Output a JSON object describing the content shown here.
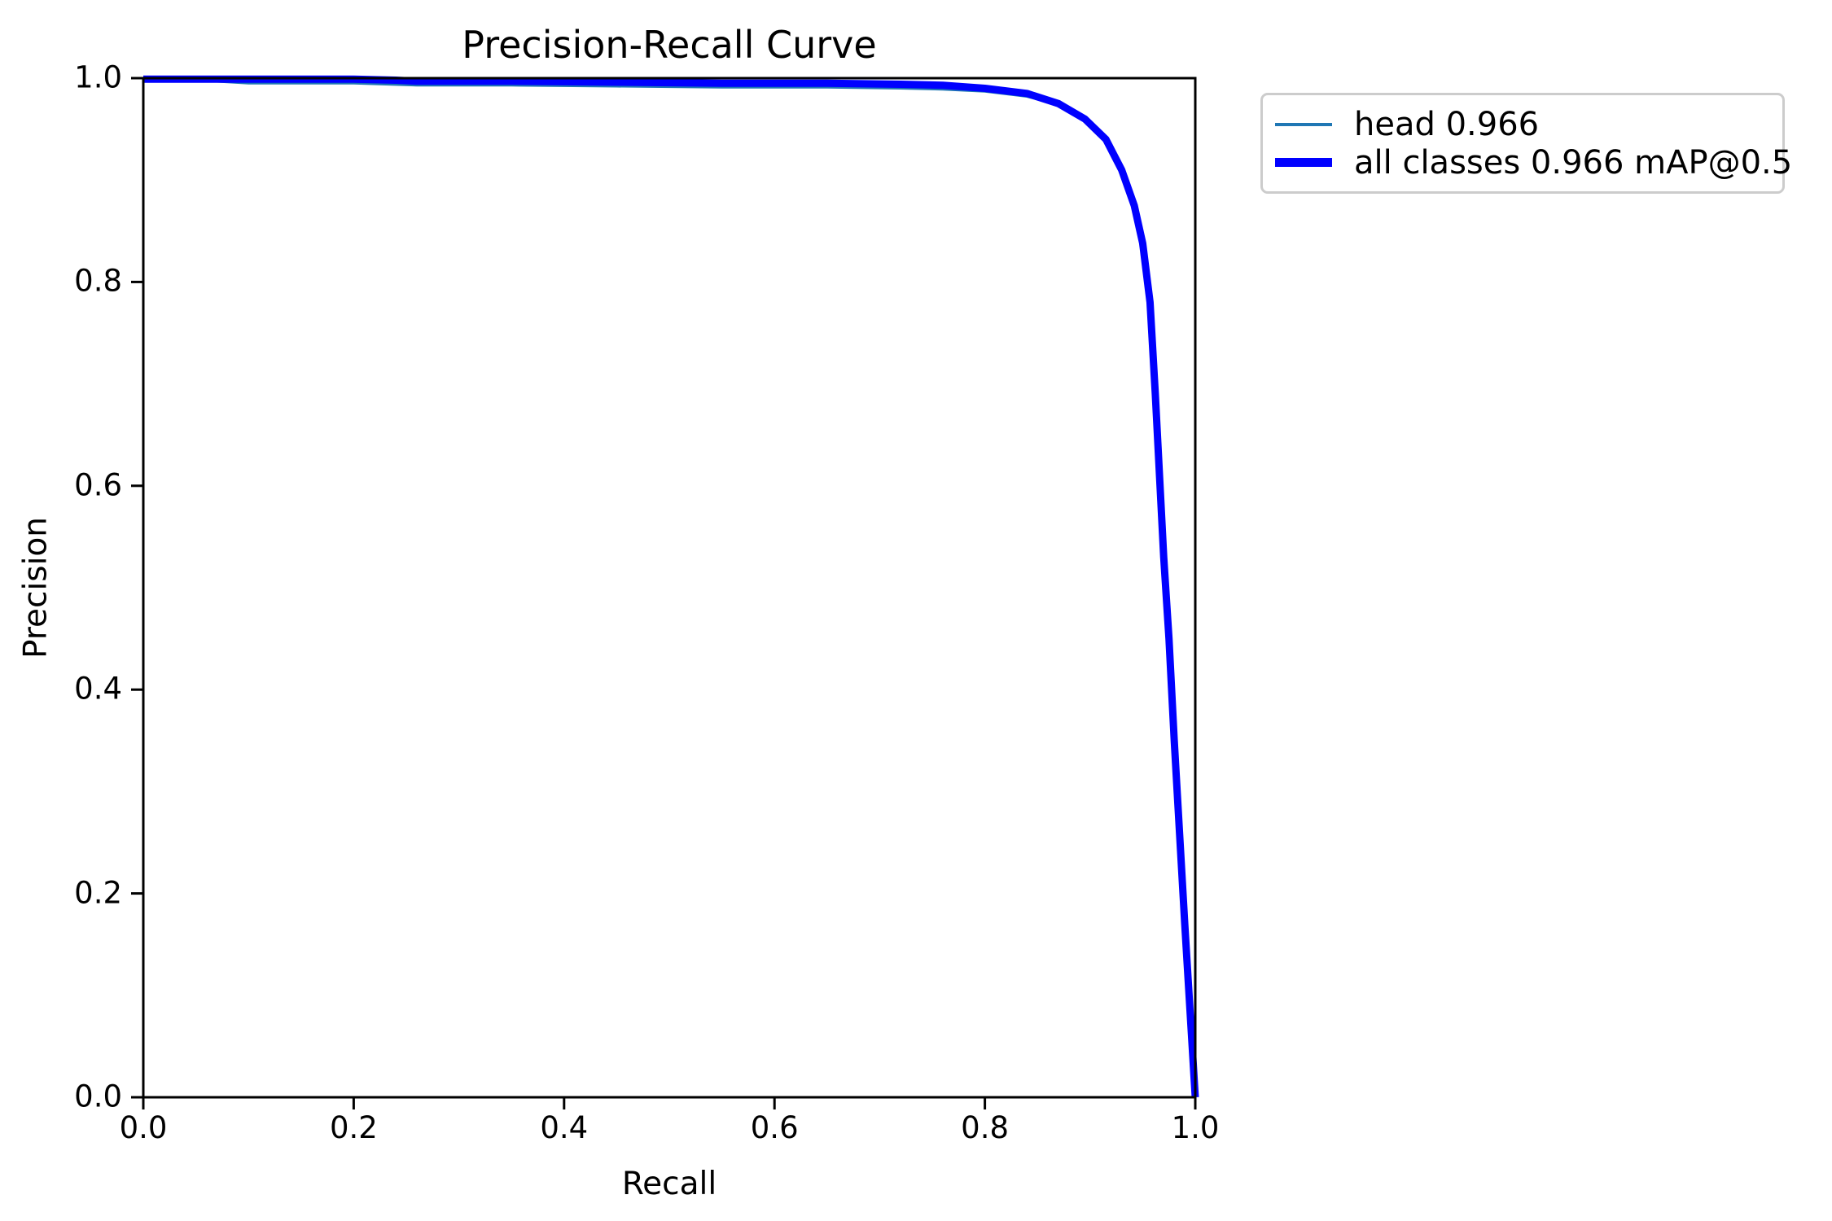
{
  "chart_data": {
    "type": "line",
    "title": "Precision-Recall Curve",
    "xlabel": "Recall",
    "ylabel": "Precision",
    "xlim": [
      0.0,
      1.0
    ],
    "ylim": [
      0.0,
      1.0
    ],
    "x_ticks": [
      "0.0",
      "0.2",
      "0.4",
      "0.6",
      "0.8",
      "1.0"
    ],
    "y_ticks": [
      "0.0",
      "0.2",
      "0.4",
      "0.6",
      "0.8",
      "1.0"
    ],
    "grid": false,
    "colors": {
      "axes": "#000000",
      "background": "#ffffff",
      "legend_border": "#cccccc",
      "head_line": "#1f77b4",
      "all_classes_line": "#0000ff"
    },
    "legend": {
      "position": "outside-upper-right",
      "entries": [
        {
          "label": "head 0.966",
          "color": "#1f77b4",
          "line_weight": "thin"
        },
        {
          "label": "all classes 0.966 mAP@0.5",
          "color": "#0000ff",
          "line_weight": "thick"
        }
      ]
    },
    "series": [
      {
        "name": "head",
        "ap": 0.966,
        "color": "#1f77b4",
        "linewidth": 3,
        "points": [
          [
            0.0,
            0.999
          ],
          [
            0.05,
            0.998
          ],
          [
            0.1,
            0.995
          ],
          [
            0.2,
            0.995
          ],
          [
            0.26,
            0.993
          ],
          [
            0.35,
            0.993
          ],
          [
            0.45,
            0.992
          ],
          [
            0.55,
            0.991
          ],
          [
            0.65,
            0.991
          ],
          [
            0.72,
            0.99
          ],
          [
            0.76,
            0.989
          ],
          [
            0.8,
            0.987
          ],
          [
            0.84,
            0.982
          ],
          [
            0.87,
            0.974
          ],
          [
            0.895,
            0.959
          ],
          [
            0.915,
            0.939
          ],
          [
            0.93,
            0.909
          ],
          [
            0.942,
            0.874
          ],
          [
            0.95,
            0.837
          ],
          [
            0.957,
            0.779
          ],
          [
            0.962,
            0.689
          ],
          [
            0.966,
            0.609
          ],
          [
            0.97,
            0.529
          ],
          [
            0.975,
            0.449
          ],
          [
            0.98,
            0.349
          ],
          [
            0.985,
            0.259
          ],
          [
            0.99,
            0.169
          ],
          [
            0.995,
            0.084
          ],
          [
            1.0,
            0.0
          ]
        ]
      },
      {
        "name": "all classes",
        "map_at_05": 0.966,
        "color": "#0000ff",
        "linewidth": 9,
        "points": [
          [
            0.0,
            0.999
          ],
          [
            0.05,
            0.999
          ],
          [
            0.1,
            0.999
          ],
          [
            0.2,
            0.999
          ],
          [
            0.24,
            0.998
          ],
          [
            0.26,
            0.997
          ],
          [
            0.35,
            0.997
          ],
          [
            0.45,
            0.996
          ],
          [
            0.55,
            0.995
          ],
          [
            0.65,
            0.995
          ],
          [
            0.72,
            0.994
          ],
          [
            0.76,
            0.993
          ],
          [
            0.8,
            0.99
          ],
          [
            0.84,
            0.985
          ],
          [
            0.87,
            0.975
          ],
          [
            0.895,
            0.96
          ],
          [
            0.915,
            0.94
          ],
          [
            0.93,
            0.91
          ],
          [
            0.942,
            0.875
          ],
          [
            0.95,
            0.838
          ],
          [
            0.957,
            0.78
          ],
          [
            0.962,
            0.69
          ],
          [
            0.966,
            0.61
          ],
          [
            0.97,
            0.53
          ],
          [
            0.975,
            0.45
          ],
          [
            0.98,
            0.35
          ],
          [
            0.985,
            0.26
          ],
          [
            0.99,
            0.17
          ],
          [
            0.995,
            0.085
          ],
          [
            1.0,
            0.0
          ]
        ]
      }
    ]
  }
}
